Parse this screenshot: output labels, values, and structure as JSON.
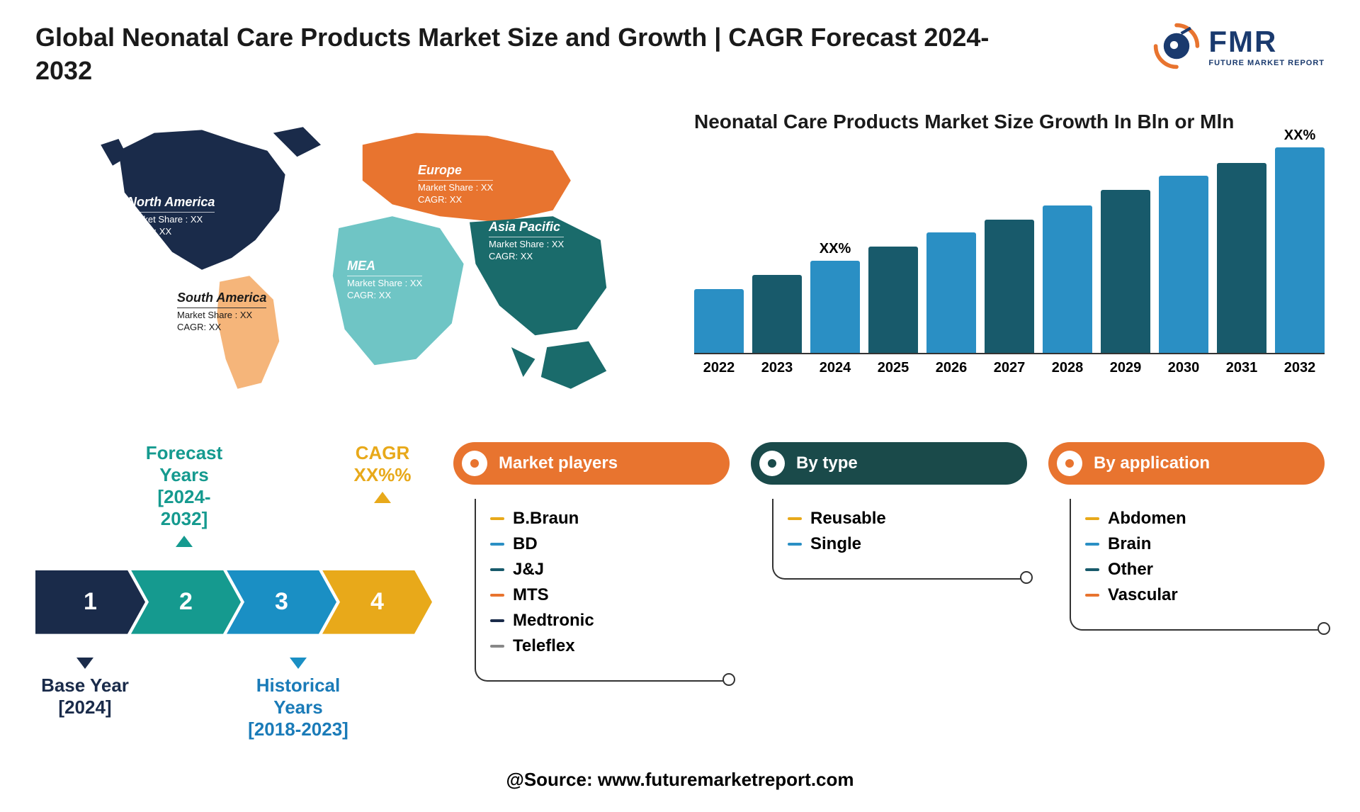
{
  "title": "Global Neonatal Care Products Market Size and Growth | CAGR Forecast 2024-2032",
  "logo": {
    "main": "FMR",
    "sub": "FUTURE MARKET REPORT"
  },
  "map": {
    "regions": [
      {
        "name": "North America",
        "share": "Market Share : XX",
        "cagr": "CAGR: XX",
        "color": "#1a2b4a"
      },
      {
        "name": "South America",
        "share": "Market Share : XX",
        "cagr": "CAGR: XX",
        "color": "#f5b57a"
      },
      {
        "name": "Europe",
        "share": "Market Share : XX",
        "cagr": "CAGR: XX",
        "color": "#e8742f"
      },
      {
        "name": "MEA",
        "share": "Market Share : XX",
        "cagr": "CAGR: XX",
        "color": "#6fc5c5"
      },
      {
        "name": "Asia Pacific",
        "share": "Market Share : XX",
        "cagr": "CAGR: XX",
        "color": "#1a6b6b"
      }
    ]
  },
  "chart": {
    "title": "Neonatal Care Products Market Size Growth In Bln or Mln",
    "years": [
      "2022",
      "2023",
      "2024",
      "2025",
      "2026",
      "2027",
      "2028",
      "2029",
      "2030",
      "2031",
      "2032"
    ],
    "values": [
      90,
      110,
      130,
      150,
      170,
      188,
      208,
      230,
      250,
      268,
      290
    ],
    "max": 300,
    "colors": [
      "#2a8fc4",
      "#185a6b",
      "#2a8fc4",
      "#185a6b",
      "#2a8fc4",
      "#185a6b",
      "#2a8fc4",
      "#185a6b",
      "#2a8fc4",
      "#185a6b",
      "#2a8fc4"
    ],
    "annotations": {
      "2024": "XX%",
      "2032": "XX%"
    }
  },
  "timeline": {
    "forecast_label": "Forecast Years",
    "forecast_range": "[2024-2032]",
    "cagr_label": "CAGR",
    "cagr_value": "XX%%",
    "base_label": "Base Year",
    "base_value": "[2024]",
    "hist_label": "Historical Years",
    "hist_range": "[2018-2023]",
    "chevrons": [
      {
        "num": "1",
        "bg": "#1a2b4a"
      },
      {
        "num": "2",
        "bg": "#159a8f"
      },
      {
        "num": "3",
        "bg": "#1a8fc4"
      },
      {
        "num": "4",
        "bg": "#e8a91a"
      }
    ]
  },
  "categories": [
    {
      "header": "Market players",
      "header_bg": "#e8742f",
      "items": [
        {
          "label": "B.Braun",
          "tick": "#e8a91a"
        },
        {
          "label": "BD",
          "tick": "#2a8fc4"
        },
        {
          "label": "J&J",
          "tick": "#185a6b"
        },
        {
          "label": "MTS",
          "tick": "#e8742f"
        },
        {
          "label": "Medtronic",
          "tick": "#1a2b4a"
        },
        {
          "label": "Teleflex",
          "tick": "#888"
        }
      ]
    },
    {
      "header": "By type",
      "header_bg": "#1a4a4a",
      "items": [
        {
          "label": "Reusable",
          "tick": "#e8a91a"
        },
        {
          "label": "Single",
          "tick": "#2a8fc4"
        }
      ]
    },
    {
      "header": "By application",
      "header_bg": "#e8742f",
      "items": [
        {
          "label": "Abdomen",
          "tick": "#e8a91a"
        },
        {
          "label": "Brain",
          "tick": "#2a8fc4"
        },
        {
          "label": "Other",
          "tick": "#185a6b"
        },
        {
          "label": "Vascular",
          "tick": "#e8742f"
        }
      ]
    }
  ],
  "source": "@Source: www.futuremarketreport.com"
}
